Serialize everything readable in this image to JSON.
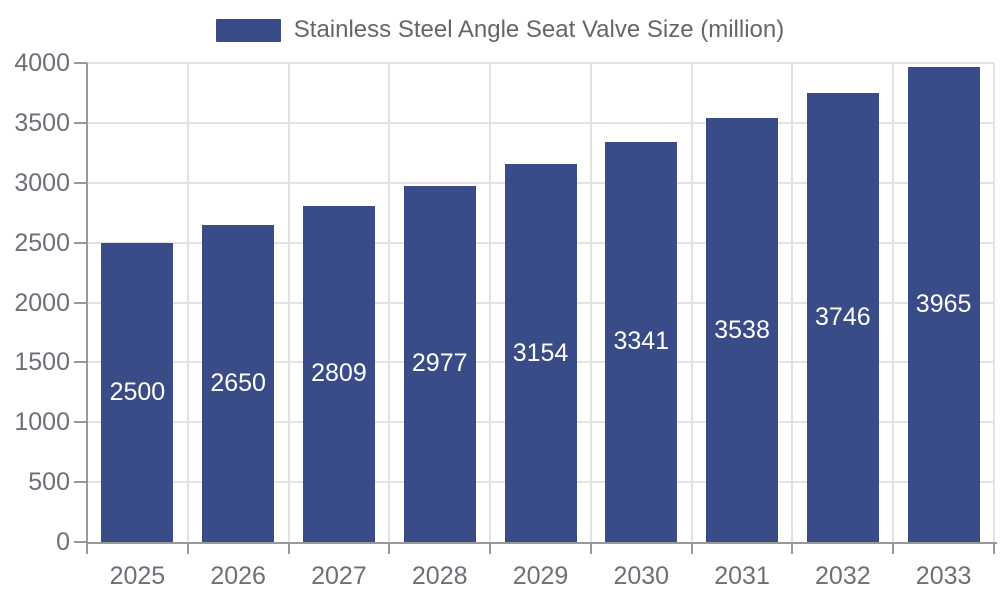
{
  "chart_data": {
    "type": "bar",
    "title": "Stainless Steel Angle Seat Valve Size (million)",
    "legend": {
      "label": "Stainless Steel Angle Seat Valve Size (million)",
      "position": "top"
    },
    "categories": [
      "2025",
      "2026",
      "2027",
      "2028",
      "2029",
      "2030",
      "2031",
      "2032",
      "2033"
    ],
    "values": [
      2500,
      2650,
      2809,
      2977,
      3154,
      3341,
      3538,
      3746,
      3965
    ],
    "value_labels_position": "inside-center",
    "xlabel": "",
    "ylabel": "",
    "ylim": [
      0,
      4000
    ],
    "yticks": [
      0,
      500,
      1000,
      1500,
      2000,
      2500,
      3000,
      3500,
      4000
    ],
    "grid": true,
    "colors": {
      "bar": "#3A4C88",
      "bar_label": "#FFFFFF",
      "axis_text": "#6E7079",
      "legend_text": "#666666",
      "grid_line": "#E3E3E3",
      "axis_line": "#999999"
    }
  }
}
